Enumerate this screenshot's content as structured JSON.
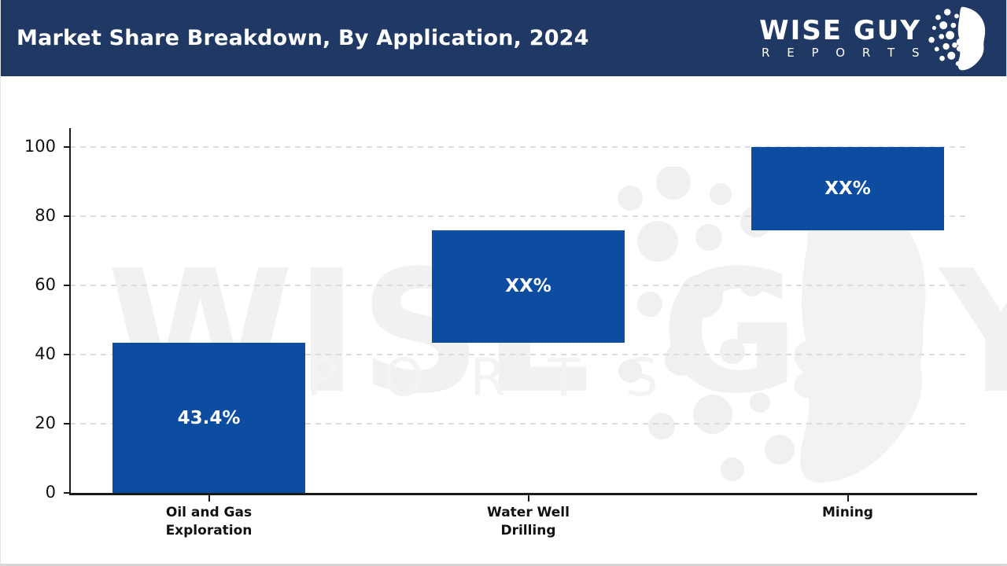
{
  "header": {
    "title": "Market Share Breakdown, By Application, 2024",
    "bg_color": "#1F3864",
    "logo": {
      "line1": "WISE GUY",
      "line2": "R E P O R T S"
    }
  },
  "watermark": {
    "line1": "WISE GUY",
    "line2": "REPORTS"
  },
  "chart_data": {
    "type": "bar",
    "variant": "floating-segment-waterfall",
    "title": "Market Share Breakdown, By Application, 2024",
    "xlabel": "",
    "ylabel": "",
    "ylim": [
      0,
      100
    ],
    "y_ticks": [
      0,
      20,
      40,
      60,
      80,
      100
    ],
    "grid": "dashed-horizontal",
    "bar_color": "#0C4DA2",
    "categories": [
      [
        "Oil and Gas",
        "Exploration"
      ],
      [
        "Water Well",
        "Drilling"
      ],
      [
        "Mining"
      ]
    ],
    "series": [
      {
        "category": "Oil and Gas Exploration",
        "start": 0,
        "end": 43.4,
        "value": 43.4,
        "label": "43.4%"
      },
      {
        "category": "Water Well Drilling",
        "start": 43.4,
        "end": 76.0,
        "value": 32.6,
        "label": "XX%"
      },
      {
        "category": "Mining",
        "start": 76.0,
        "end": 100,
        "value": 24.0,
        "label": "XX%"
      }
    ]
  }
}
